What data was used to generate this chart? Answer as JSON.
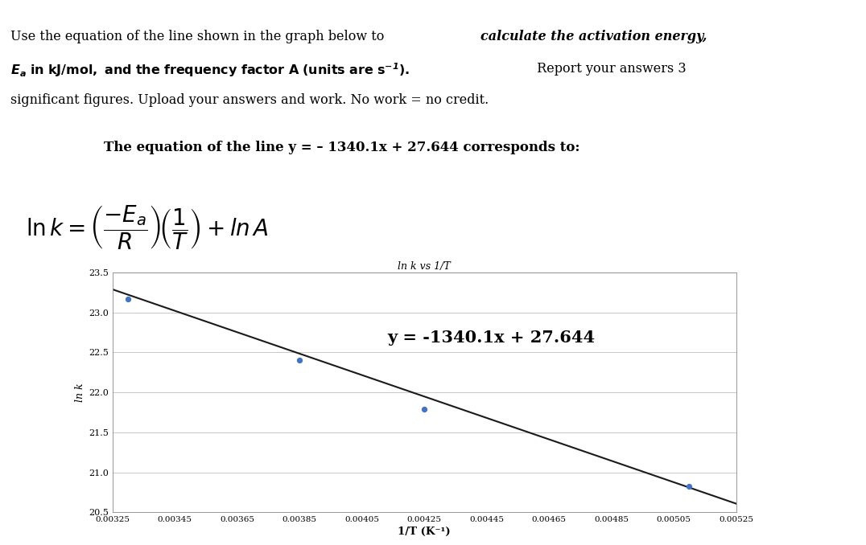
{
  "subtitle": "The equation of the line y = – 1340.1x + 27.644 corresponds to:",
  "graph_title": "ln k vs 1/T",
  "xlabel": "1/T (K⁻¹)",
  "ylabel": "ln k",
  "equation_label": "y = -1340.1x + 27.644",
  "slope": -1340.1,
  "intercept": 27.644,
  "data_points": [
    [
      0.0033,
      23.17
    ],
    [
      0.00385,
      22.4
    ],
    [
      0.00425,
      21.79
    ],
    [
      0.0051,
      20.82
    ]
  ],
  "xticks": [
    0.00325,
    0.00345,
    0.00365,
    0.00385,
    0.00405,
    0.00425,
    0.00445,
    0.00465,
    0.00485,
    0.00505,
    0.00525
  ],
  "yticks": [
    20.5,
    21.0,
    21.5,
    22.0,
    22.5,
    23.0,
    23.5
  ],
  "xlim": [
    0.00325,
    0.00525
  ],
  "ylim": [
    20.5,
    23.5
  ],
  "line_color": "#1a1a1a",
  "dot_color": "#4472c4",
  "background_color": "#ffffff",
  "grid_color": "#c8c8c8",
  "equation_fontsize": 15,
  "axis_tick_fontsize": 7.5,
  "graph_title_fontsize": 9,
  "text_fontsize": 11.5
}
